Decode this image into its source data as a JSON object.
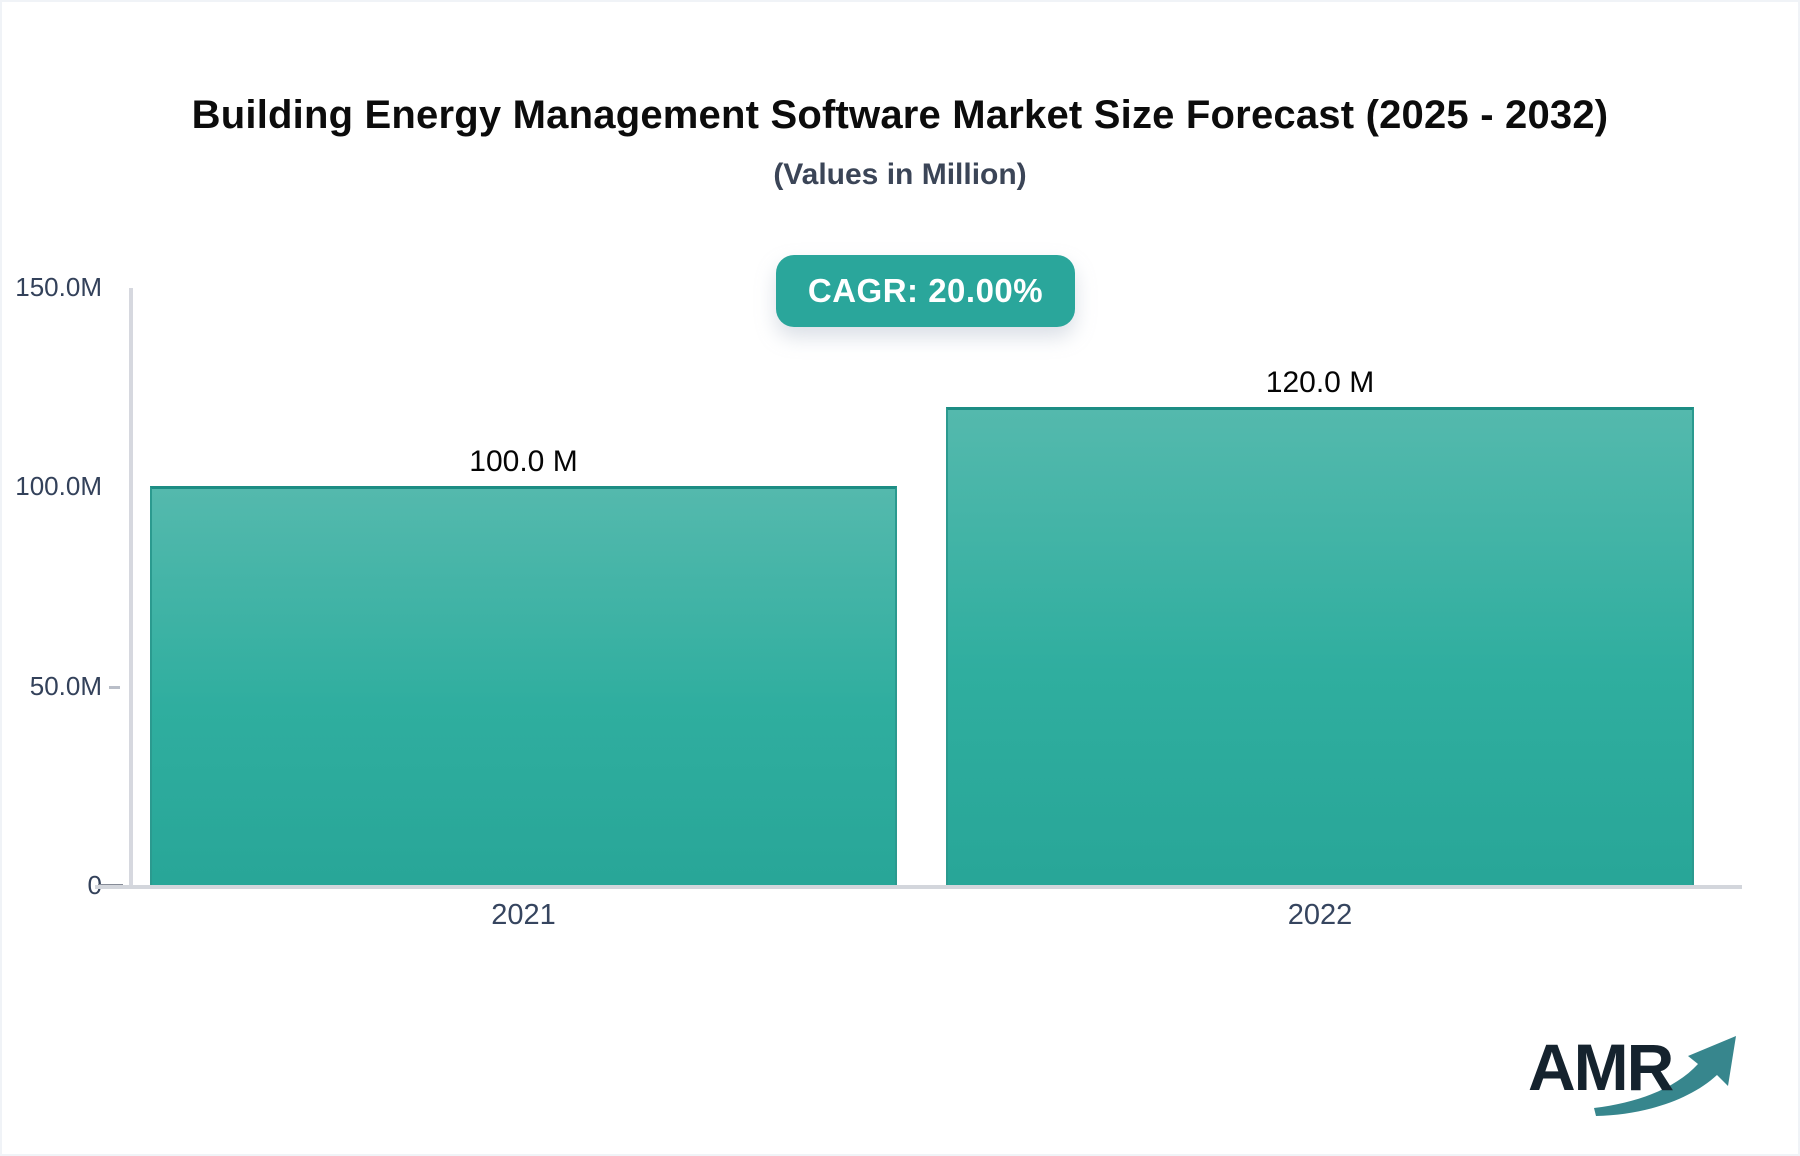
{
  "title": "Building Energy Management Software Market Size Forecast (2025 - 2032)",
  "subtitle": "(Values in Million)",
  "badge": {
    "label": "CAGR: 20.00%",
    "bg_color": "#2aa69b",
    "text_color": "#ffffff"
  },
  "chart_data": {
    "type": "bar",
    "title": "Building Energy Management Software Market Size Forecast (2025 - 2032)",
    "subtitle": "(Values in Million)",
    "unit": "Million",
    "categories": [
      "2021",
      "2022"
    ],
    "values": [
      100.0,
      120.0
    ],
    "value_labels": [
      "100.0 M",
      "120.0 M"
    ],
    "y_ticks": [
      {
        "label": "150.0M",
        "value": 150
      },
      {
        "label": "100.0M",
        "value": 100
      },
      {
        "label": "50.0M",
        "value": 50
      },
      {
        "label": "0",
        "value": 0
      }
    ],
    "ylim": [
      0,
      150
    ],
    "xlabel": "",
    "ylabel": "",
    "grid": false,
    "legend": "none",
    "colors": {
      "bar_gradient_top": "#54b9ad",
      "bar_gradient_bottom": "#28a698",
      "bar_border": "#1d8d84",
      "axis_line": "#d5d7de",
      "tick_text": "#33415a",
      "accent": "#2aa69b"
    }
  },
  "logo": {
    "text": "AMR",
    "icon": "growth-arrow-icon",
    "text_color": "#15232e",
    "arrow_color": "#37868d"
  }
}
